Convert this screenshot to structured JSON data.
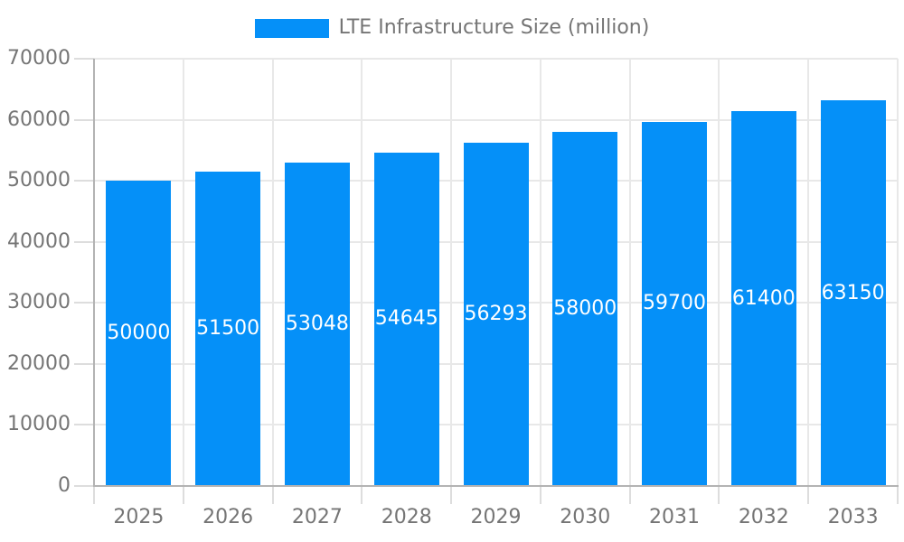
{
  "legend": {
    "label": "LTE Infrastructure Size (million)"
  },
  "colors": {
    "bar": "#0590F8",
    "bar_label": "#FFFFFF",
    "grid": "#E8E8E8",
    "tick": "#DDDDDD",
    "axis": "#B3B3B3",
    "text": "#757575",
    "background": "#FFFFFF"
  },
  "chart_data": {
    "type": "bar",
    "title": "LTE Infrastructure Size (million)",
    "series_name": "LTE Infrastructure Size (million)",
    "categories": [
      "2025",
      "2026",
      "2027",
      "2028",
      "2029",
      "2030",
      "2031",
      "2032",
      "2033"
    ],
    "values": [
      50000,
      51500,
      53048,
      54645,
      56293,
      58000,
      59700,
      61400,
      63150
    ],
    "xlabel": "",
    "ylabel": "",
    "ylim": [
      0,
      70000
    ],
    "yticks": [
      0,
      10000,
      20000,
      30000,
      40000,
      50000,
      60000,
      70000
    ],
    "grid": true,
    "legend_position": "top",
    "value_labels": "inside-center"
  }
}
